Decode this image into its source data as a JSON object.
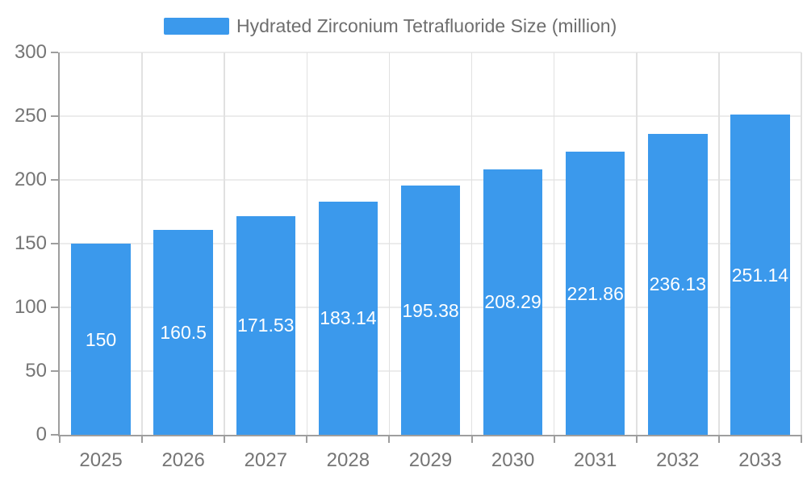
{
  "chart_data": {
    "type": "bar",
    "title": "Hydrated Zirconium Tetrafluoride Size (million)",
    "legend_position": "top",
    "categories": [
      "2025",
      "2026",
      "2027",
      "2028",
      "2029",
      "2030",
      "2031",
      "2032",
      "2033"
    ],
    "values": [
      150,
      160.5,
      171.53,
      183.14,
      195.38,
      208.29,
      221.86,
      236.13,
      251.14
    ],
    "value_labels": [
      "150",
      "160.5",
      "171.53",
      "183.14",
      "195.38",
      "208.29",
      "221.86",
      "236.13",
      "251.14"
    ],
    "series_name": "Hydrated Zirconium Tetrafluoride Size (million)",
    "xlabel": "",
    "ylabel": "",
    "ylim": [
      0,
      300
    ],
    "y_ticks": [
      0,
      50,
      100,
      150,
      200,
      250,
      300
    ],
    "grid": true,
    "colors": {
      "bar": "#3B99EC",
      "axis": "#9E9E9E",
      "grid_h": "#ECECEC",
      "grid_v": "#E1E1E1",
      "tick_label": "#757575",
      "legend_text": "#6E6E6E",
      "bar_label": "#FFFFFF",
      "background": "#FFFFFF"
    }
  }
}
